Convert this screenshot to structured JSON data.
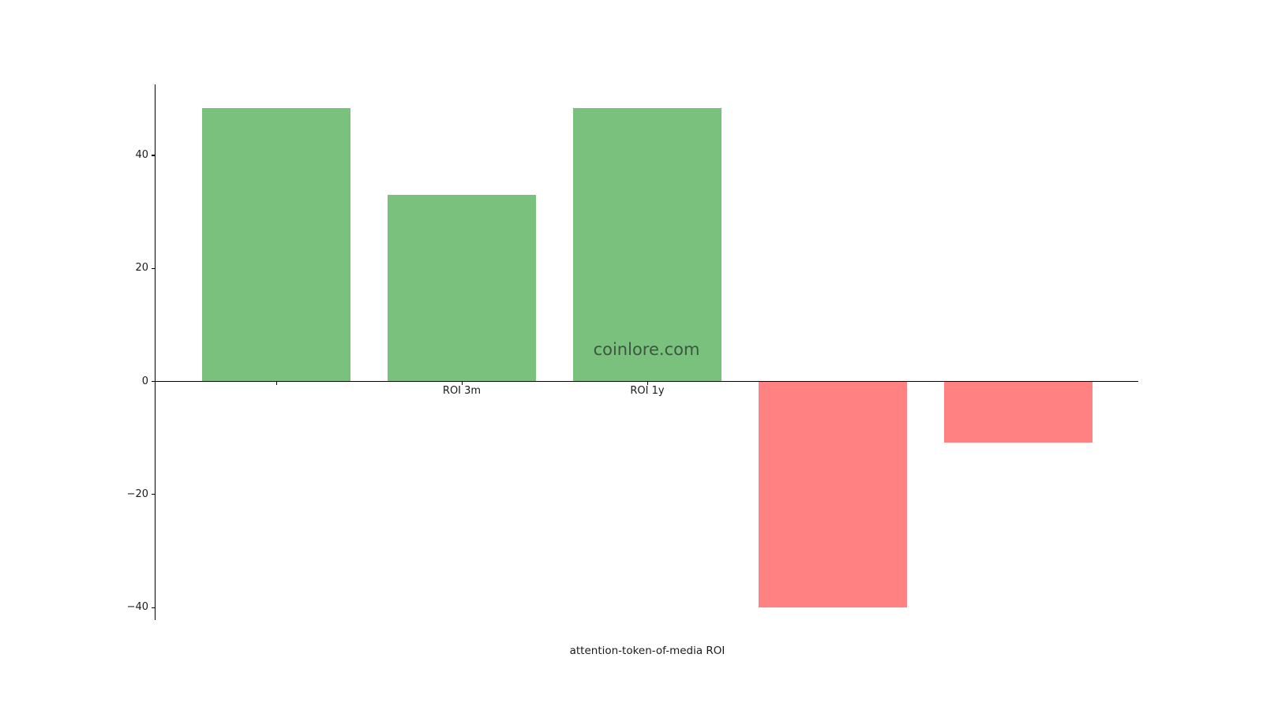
{
  "chart_data": {
    "type": "bar",
    "title": "attention-token-of-media ROI",
    "watermark": "coinlore.com",
    "categories": [
      "",
      "ROI 3m",
      "ROI 1y",
      "",
      ""
    ],
    "values": [
      48.3,
      33.0,
      48.3,
      -40.0,
      -10.8
    ],
    "y_ticks": [
      {
        "value": 40,
        "label": "40"
      },
      {
        "value": 20,
        "label": "20"
      },
      {
        "value": 0,
        "label": "0"
      },
      {
        "value": -20,
        "label": "−20"
      },
      {
        "value": -40,
        "label": "−40"
      }
    ],
    "ylim": [
      -42.1,
      52.5
    ],
    "grid": false,
    "legend": "none",
    "positive_color": "#7bc17e",
    "negative_color": "#ff8181",
    "axis_color": "#000000",
    "tick_label_color": "#1a1a1a",
    "watermark_color": "#3c5640",
    "title_color": "#1a1a1a"
  }
}
